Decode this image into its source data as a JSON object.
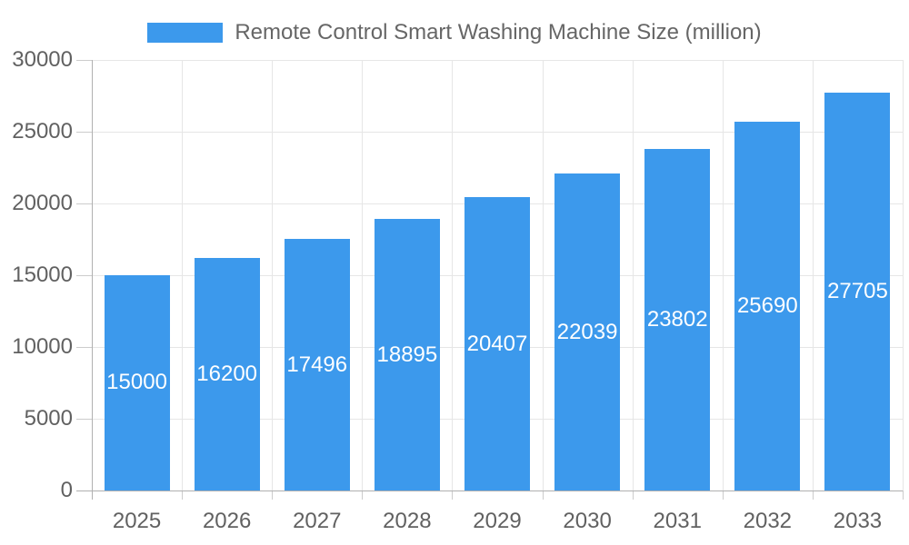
{
  "chart_data": {
    "type": "bar",
    "title": "Remote Control Smart Washing Machine Size (million)",
    "categories": [
      "2025",
      "2026",
      "2027",
      "2028",
      "2029",
      "2030",
      "2031",
      "2032",
      "2033"
    ],
    "series": [
      {
        "name": "Remote Control Smart Washing Machine Size (million)",
        "values": [
          15000,
          16200,
          17496,
          18895,
          20407,
          22039,
          23802,
          25690,
          27705
        ]
      }
    ],
    "value_labels": [
      "15000",
      "16200",
      "17496",
      "18895",
      "20407",
      "22039",
      "23802",
      "25690",
      "27705"
    ],
    "xlabel": "",
    "ylabel": "",
    "ylim": [
      0,
      30000
    ],
    "yticks": [
      0,
      5000,
      10000,
      15000,
      20000,
      25000,
      30000
    ],
    "ytick_labels": [
      "0",
      "5000",
      "10000",
      "15000",
      "20000",
      "25000",
      "30000"
    ],
    "grid": true,
    "legend_position": "top",
    "colors": {
      "bar": "#3C99EC",
      "value_label": "#FFFFFF",
      "gridline": "#E6E6E6",
      "tick": "#CCCCCC",
      "axis_line": "#B0B0B0",
      "axis_text": "#616161",
      "legend_text": "#666666"
    }
  }
}
